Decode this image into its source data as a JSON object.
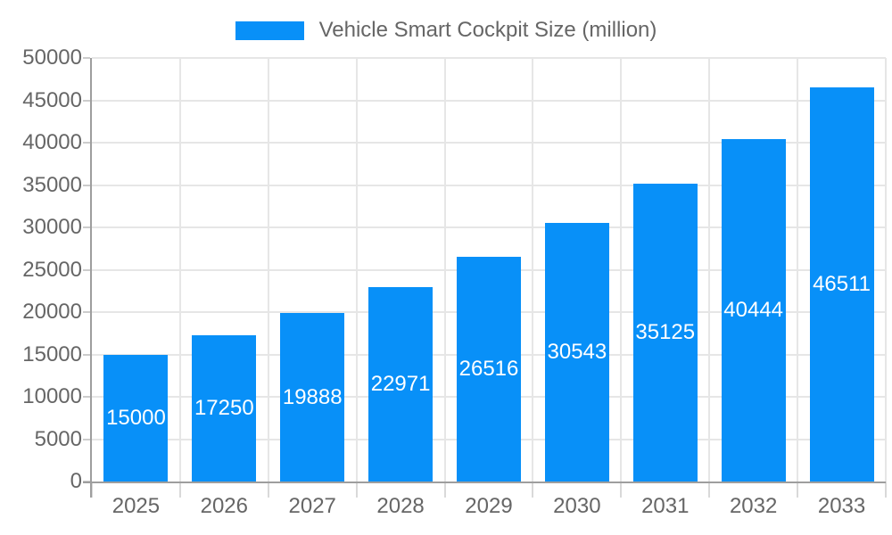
{
  "chart_data": {
    "type": "bar",
    "title": "Vehicle Smart Cockpit Size (million)",
    "categories": [
      "2025",
      "2026",
      "2027",
      "2028",
      "2029",
      "2030",
      "2031",
      "2032",
      "2033"
    ],
    "values": [
      15000,
      17250,
      19888,
      22971,
      26516,
      30543,
      35125,
      40444,
      46511
    ],
    "xlabel": "",
    "ylabel": "",
    "ylim": [
      0,
      50000
    ],
    "ytick_step": 5000,
    "grid": true,
    "legend_position": "top",
    "value_labels": "inside-center",
    "colors": {
      "bar": "#0890f8",
      "axis_text": "#666666",
      "value_text": "#ffffff",
      "grid": "#e6e6e6",
      "axis_line": "#9e9e9e",
      "tick": "#cccccc",
      "background": "#ffffff"
    }
  }
}
